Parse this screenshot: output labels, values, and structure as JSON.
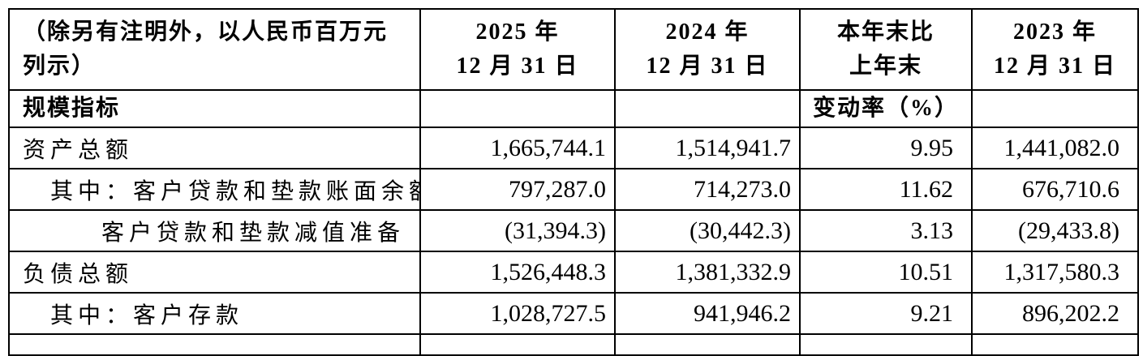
{
  "colors": {
    "background": "#ffffff",
    "border": "#000000",
    "text": "#000000"
  },
  "table": {
    "unit_note": {
      "line1": "（除另有注明外，以人民币百万元",
      "line2": "列示）"
    },
    "col_headers": {
      "y2025": {
        "line1": "2025 年",
        "line2": "12 月 31 日"
      },
      "y2024": {
        "line1": "2024 年",
        "line2": "12 月 31 日"
      },
      "change": {
        "line1": "本年末比",
        "line2": "上年末"
      },
      "y2023": {
        "line1": "2023 年",
        "line2": "12 月 31 日"
      }
    },
    "section_label": "规模指标",
    "change_rate_header": "变动率（%）",
    "rows": [
      {
        "label": "资产总额",
        "dec_2025": "1,665,744.1",
        "dec_2024": "1,514,941.7",
        "change_pct": "9.95",
        "dec_2023": "1,441,082.0"
      },
      {
        "label": "其中：客户贷款和垫款账面余额",
        "dec_2025": "797,287.0",
        "dec_2024": "714,273.0",
        "change_pct": "11.62",
        "dec_2023": "676,710.6"
      },
      {
        "label": "客户贷款和垫款减值准备",
        "dec_2025": "(31,394.3)",
        "dec_2024": "(30,442.3)",
        "change_pct": "3.13",
        "dec_2023": "(29,433.8)"
      },
      {
        "label": "负债总额",
        "dec_2025": "1,526,448.3",
        "dec_2024": "1,381,332.9",
        "change_pct": "10.51",
        "dec_2023": "1,317,580.3"
      },
      {
        "label": "其中：客户存款",
        "dec_2025": "1,028,727.5",
        "dec_2024": "941,946.2",
        "change_pct": "9.21",
        "dec_2023": "896,202.2"
      }
    ]
  }
}
